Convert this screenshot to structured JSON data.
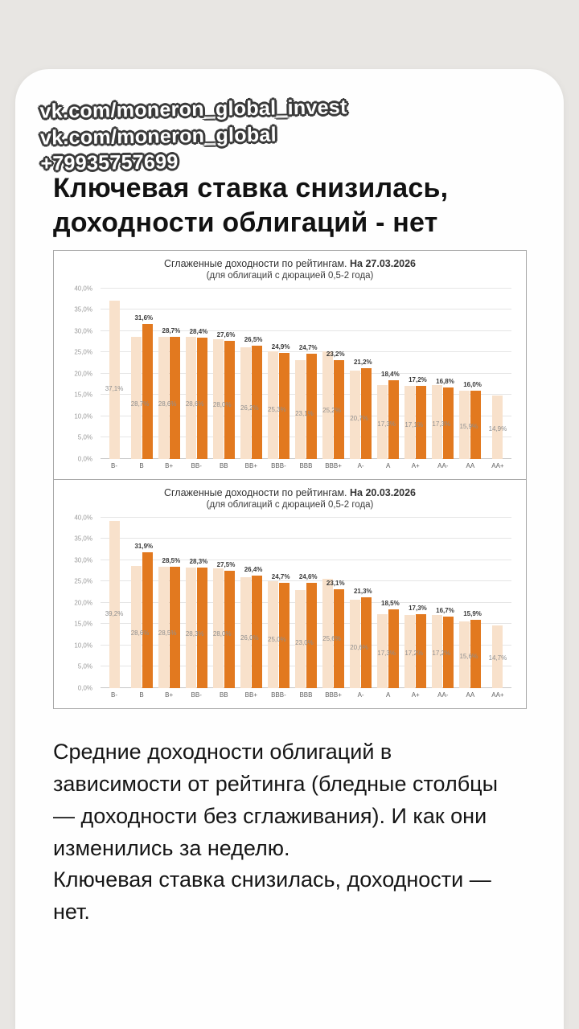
{
  "overlay": {
    "line1": "vk.com/moneron_global_invest",
    "line2": "vk.com/moneron_global",
    "line3": "+79935757699"
  },
  "heading": {
    "line1": "Ключевая ставка снизилась,",
    "line2": "доходности облигаций - нет"
  },
  "caption": {
    "p1": "Средние доходности облигаций в зависимости от рейтинга (бледные столбцы — доходности без сглаживания). И как они изменились за неделю.",
    "p2": "Ключевая ставка снизилась, доходности — нет."
  },
  "colors": {
    "background": "#e8e6e3",
    "card": "#fefefe",
    "bar_smoothed": "#e2791f",
    "bar_unsmoothed": "#f8e1cb",
    "gridline": "#e5e5e5"
  },
  "chart_data": [
    {
      "type": "bar",
      "title_regular": "Сглаженные доходности по рейтингам. ",
      "title_bold": "На 27.03.2026",
      "subtitle": "(для облигаций с дюрацией 0,5-2 года)",
      "categories": [
        "B-",
        "B",
        "B+",
        "BB-",
        "BB",
        "BB+",
        "BBB-",
        "BBB",
        "BBB+",
        "A-",
        "A",
        "A+",
        "AA-",
        "AA",
        "AA+"
      ],
      "series": [
        {
          "name": "доходности без сглаживания",
          "values": [
            37.1,
            28.7,
            28.6,
            28.6,
            28.0,
            26.2,
            25.3,
            23.1,
            25.2,
            20.7,
            17.3,
            17.1,
            17.3,
            15.9,
            14.9
          ],
          "labels": [
            "37,1%",
            "28,7%",
            "28,6%",
            "28,6%",
            "28,0%",
            "26,2%",
            "25,3%",
            "23,1%",
            "25,2%",
            "20,7%",
            "17,3%",
            "17,1%",
            "17,3%",
            "15,9%",
            "14,9%"
          ]
        },
        {
          "name": "сглаженные доходности",
          "values": [
            null,
            31.6,
            28.7,
            28.4,
            27.6,
            26.5,
            24.9,
            24.7,
            23.2,
            21.2,
            18.4,
            17.2,
            16.8,
            16.0,
            null
          ],
          "labels": [
            null,
            "31,6%",
            "28,7%",
            "28,4%",
            "27,6%",
            "26,5%",
            "24,9%",
            "24,7%",
            "23,2%",
            "21,2%",
            "18,4%",
            "17,2%",
            "16,8%",
            "16,0%",
            null
          ]
        }
      ],
      "ylim": [
        0,
        40
      ],
      "yticks": [
        "0,0%",
        "5,0%",
        "10,0%",
        "15,0%",
        "20,0%",
        "25,0%",
        "30,0%",
        "35,0%",
        "40,0%"
      ],
      "grid": true,
      "legend": "none"
    },
    {
      "type": "bar",
      "title_regular": "Сглаженные доходности по рейтингам. ",
      "title_bold": "На 20.03.2026",
      "subtitle": "(для облигаций с дюрацией 0,5-2 года)",
      "categories": [
        "B-",
        "B",
        "B+",
        "BB-",
        "BB",
        "BB+",
        "BBB-",
        "BBB",
        "BBB+",
        "A-",
        "A",
        "A+",
        "AA-",
        "AA",
        "AA+"
      ],
      "series": [
        {
          "name": "доходности без сглаживания",
          "values": [
            39.2,
            28.6,
            28.5,
            28.3,
            28.0,
            26.0,
            25.0,
            23.0,
            25.6,
            20.6,
            17.3,
            17.2,
            17.2,
            15.6,
            14.7
          ],
          "labels": [
            "39,2%",
            "28,6%",
            "28,5%",
            "28,3%",
            "28,0%",
            "26,0%",
            "25,0%",
            "23,0%",
            "25,6%",
            "20,6%",
            "17,3%",
            "17,2%",
            "17,2%",
            "15,6%",
            "14,7%"
          ]
        },
        {
          "name": "сглаженные доходности",
          "values": [
            null,
            31.9,
            28.5,
            28.3,
            27.5,
            26.4,
            24.7,
            24.6,
            23.1,
            21.3,
            18.5,
            17.3,
            16.7,
            15.9,
            null
          ],
          "labels": [
            null,
            "31,9%",
            "28,5%",
            "28,3%",
            "27,5%",
            "26,4%",
            "24,7%",
            "24,6%",
            "23,1%",
            "21,3%",
            "18,5%",
            "17,3%",
            "16,7%",
            "15,9%",
            null
          ]
        }
      ],
      "ylim": [
        0,
        40
      ],
      "yticks": [
        "0,0%",
        "5,0%",
        "10,0%",
        "15,0%",
        "20,0%",
        "25,0%",
        "30,0%",
        "35,0%",
        "40,0%"
      ],
      "grid": true,
      "legend": "none"
    }
  ]
}
